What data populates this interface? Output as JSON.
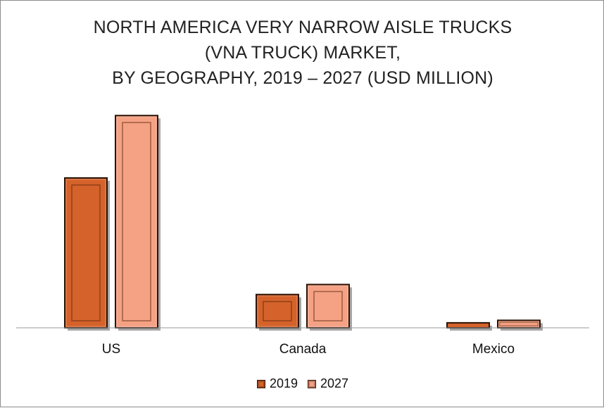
{
  "chart_data": {
    "type": "bar",
    "title_lines": [
      "NORTH AMERICA VERY NARROW AISLE TRUCKS",
      "(VNA TRUCK) MARKET,",
      "BY GEOGRAPHY, 2019 – 2027 (USD MILLION)"
    ],
    "categories": [
      "US",
      "Canada",
      "Mexico"
    ],
    "series": [
      {
        "name": "2019",
        "values": [
          180,
          40,
          6
        ],
        "color": "#d4622a"
      },
      {
        "name": "2027",
        "values": [
          255,
          52,
          9
        ],
        "color": "#f4a184"
      }
    ],
    "ylim": [
      0,
      300
    ],
    "grid": false,
    "legend_position": "bottom"
  }
}
